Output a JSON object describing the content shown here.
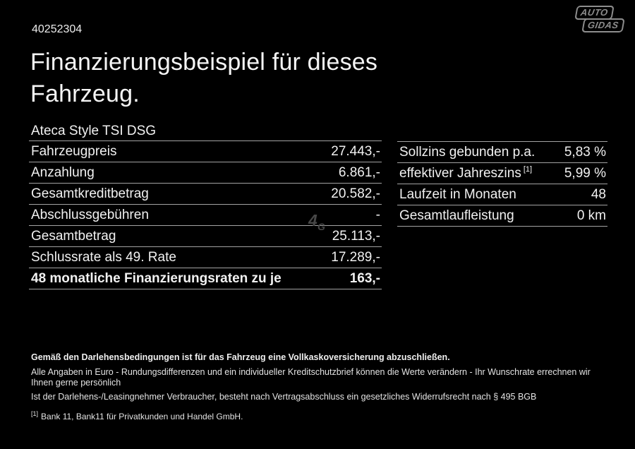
{
  "page": {
    "vehicle_id": "40252304",
    "title_line1": "Finanzierungsbeispiel für dieses",
    "title_line2": "Fahrzeug."
  },
  "logo": {
    "line1": "AUTO",
    "line2": "GIDAS"
  },
  "colors": {
    "background": "#000000",
    "text": "#f1f1f1",
    "divider": "#a3a3a3",
    "logo_gray": "#8d8d8d",
    "watermark_gray": "#474747"
  },
  "vehicle": {
    "model": "Ateca Style TSI DSG"
  },
  "financing_table": {
    "rows": [
      {
        "label": "Fahrzeugpreis",
        "value": "27.443,-"
      },
      {
        "label": "Anzahlung",
        "value": "6.861,-"
      },
      {
        "label": "Gesamtkreditbetrag",
        "value": "20.582,-"
      },
      {
        "label": "Abschlussgebühren",
        "value": "-"
      },
      {
        "label": "Gesamtbetrag",
        "value": "25.113,-"
      },
      {
        "label": "Schlussrate als 49. Rate",
        "value": "17.289,-"
      }
    ],
    "highlight_row": {
      "label": "48 monatliche Finanzierungsraten zu je",
      "value": "163,-"
    }
  },
  "conditions_table": {
    "rows": [
      {
        "label": "Sollzins gebunden p.a.",
        "sup": "",
        "value": "5,83 %"
      },
      {
        "label": "effektiver Jahreszins",
        "sup": "[1]",
        "value": "5,99 %"
      },
      {
        "label": "Laufzeit in Monaten",
        "sup": "",
        "value": "48"
      },
      {
        "label": "Gesamtlaufleistung",
        "sup": "",
        "value": "0 km"
      }
    ]
  },
  "watermark": {
    "char1": "4",
    "char2": "G"
  },
  "footer": {
    "line1": "Gemäß den Darlehensbedingungen ist für das Fahrzeug eine Vollkaskoversicherung abzuschließen.",
    "line2": "Alle Angaben in Euro - Rundungsdifferenzen und ein individueller Kreditschutzbrief können die Werte verändern - Ihr Wunschrate errechnen wir Ihnen gerne persönlich",
    "line3": "Ist der Darlehens-/Leasingnehmer Verbraucher, besteht nach Vertragsabschluss ein gesetzliches Widerrufsrecht nach § 495 BGB",
    "footnote_marker": "[1]",
    "footnote_text": "Bank 11, Bank11 für Privatkunden und Handel GmbH."
  }
}
